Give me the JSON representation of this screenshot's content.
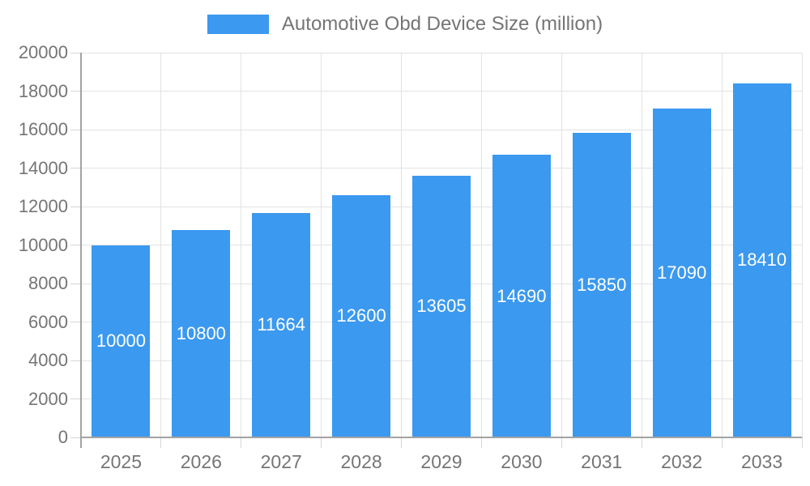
{
  "legend": {
    "label": "Automotive Obd Device Size (million)"
  },
  "chart_data": {
    "type": "bar",
    "title": "",
    "xlabel": "",
    "ylabel": "",
    "categories": [
      "2025",
      "2026",
      "2027",
      "2028",
      "2029",
      "2030",
      "2031",
      "2032",
      "2033"
    ],
    "series": [
      {
        "name": "Automotive Obd Device Size (million)",
        "values": [
          10000,
          10800,
          11664,
          12600,
          13605,
          14690,
          15850,
          17090,
          18410
        ]
      }
    ],
    "bar_labels": [
      "10000",
      "10800",
      "11664",
      "12600",
      "13605",
      "14690",
      "15850",
      "17090",
      "18410"
    ],
    "ylim": [
      0,
      20000
    ],
    "ytick_step": 2000,
    "yticks": [
      "0",
      "2000",
      "4000",
      "6000",
      "8000",
      "10000",
      "12000",
      "14000",
      "16000",
      "18000",
      "20000"
    ],
    "grid": true,
    "legend_position": "top",
    "colors": {
      "bar": "#3B99EF",
      "bar_label": "#FFFFFF",
      "axis_line": "#A3A3A3",
      "grid_line": "#E3E3E3",
      "tick_line": "#D6D6D6",
      "axis_text": "#757575",
      "legend_text": "#757575",
      "background": "#FFFFFF"
    }
  }
}
